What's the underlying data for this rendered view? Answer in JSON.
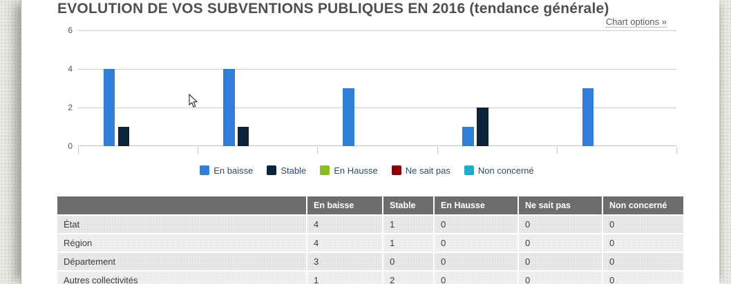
{
  "header": {
    "title": "EVOLUTION DE VOS SUBVENTIONS PUBLIQUES EN 2016 (tendance générale)",
    "chart_options_label": "Chart options »"
  },
  "chart_data": {
    "type": "bar",
    "title": "EVOLUTION DE VOS SUBVENTIONS PUBLIQUES EN 2016 (tendance générale)",
    "categories": [
      "État",
      "Région",
      "Département",
      "Autres collectivités",
      ""
    ],
    "series": [
      {
        "name": "En baisse",
        "color": "#2f7ed8",
        "values": [
          4,
          4,
          3,
          1,
          3
        ]
      },
      {
        "name": "Stable",
        "color": "#0d233a",
        "values": [
          1,
          1,
          0,
          2,
          0
        ]
      },
      {
        "name": "En Hausse",
        "color": "#8bbc21",
        "values": [
          0,
          0,
          0,
          0,
          0
        ]
      },
      {
        "name": "Ne sait pas",
        "color": "#910000",
        "values": [
          0,
          0,
          0,
          0,
          0
        ]
      },
      {
        "name": "Non concerné",
        "color": "#1aadce",
        "values": [
          0,
          0,
          0,
          0,
          0
        ]
      }
    ],
    "ylim": [
      0,
      6
    ],
    "yticks": [
      0,
      2,
      4,
      6
    ],
    "xlabel": "",
    "ylabel": "",
    "grid": true,
    "legend_position": "bottom-center",
    "x_axis_labels_visible": false
  },
  "table": {
    "columns": [
      "",
      "En baisse",
      "Stable",
      "En Hausse",
      "Ne sait pas",
      "Non concerné"
    ],
    "rows": [
      {
        "label": "État",
        "values": [
          "4",
          "1",
          "0",
          "0",
          "0"
        ]
      },
      {
        "label": "Région",
        "values": [
          "4",
          "1",
          "0",
          "0",
          "0"
        ]
      },
      {
        "label": "Département",
        "values": [
          "3",
          "0",
          "0",
          "0",
          "0"
        ]
      },
      {
        "label": "Autres collectivités",
        "values": [
          "1",
          "2",
          "0",
          "0",
          "0"
        ]
      }
    ]
  },
  "colors": {
    "table_header_bg": "#6d6d6d",
    "row_bg_odd": "#e3e5e2",
    "row_bg_even": "#ecedea",
    "gridline": "#cbcbcb",
    "axis": "#b9c7d4"
  }
}
